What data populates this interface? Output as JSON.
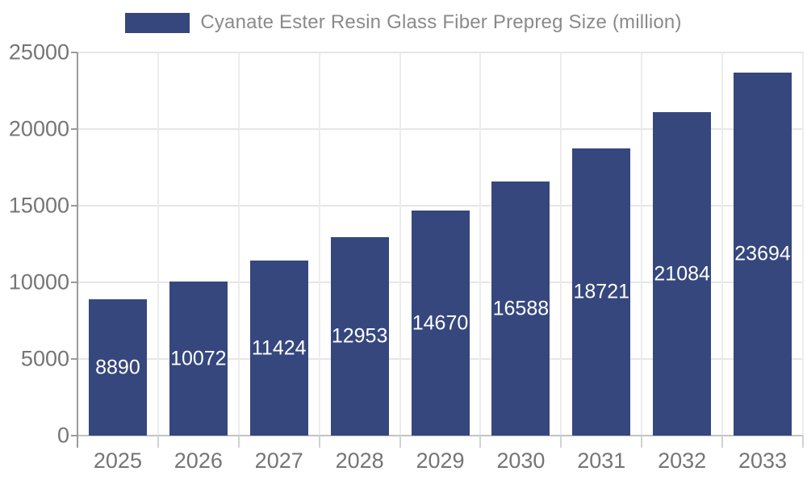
{
  "legend": {
    "label": "Cyanate Ester Resin Glass Fiber Prepreg Size (million)"
  },
  "chart_data": {
    "type": "bar",
    "title": "Cyanate Ester Resin Glass Fiber Prepreg Size (million)",
    "categories": [
      "2025",
      "2026",
      "2027",
      "2028",
      "2029",
      "2030",
      "2031",
      "2032",
      "2033"
    ],
    "values": [
      8890,
      10072,
      11424,
      12953,
      14670,
      16588,
      18721,
      21084,
      23694
    ],
    "xlabel": "",
    "ylabel": "",
    "ylim": [
      0,
      25000
    ],
    "yticks": [
      0,
      5000,
      10000,
      15000,
      20000,
      25000
    ],
    "grid": true,
    "legend_position": "top-center",
    "bar_color": "#35477D",
    "value_label_color": "#ffffff",
    "axis_label_color": "#757575",
    "title_color": "#8a8a8a",
    "gridline_color": "#e6e6e6"
  }
}
